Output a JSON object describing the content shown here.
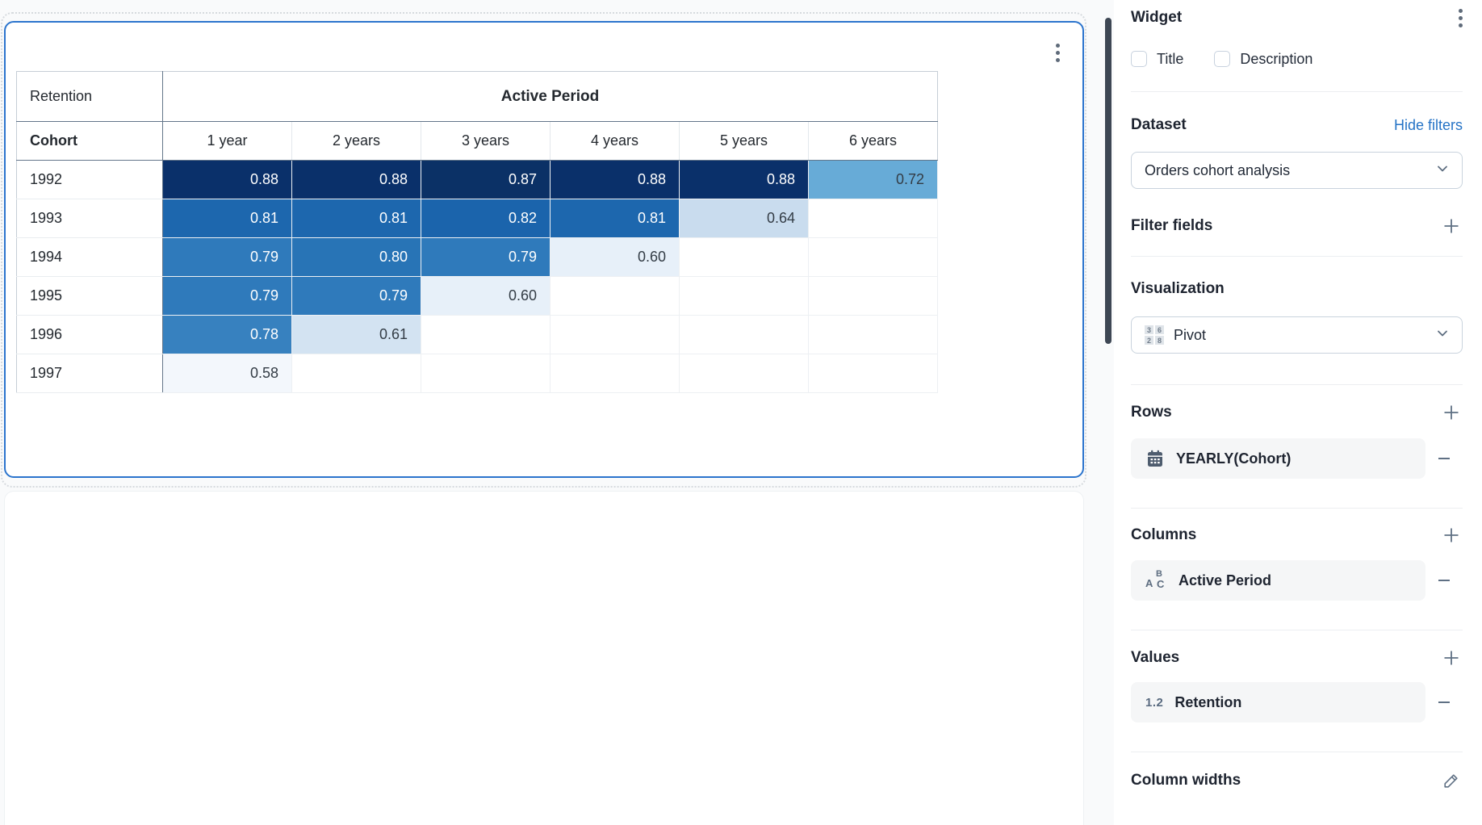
{
  "canvas": {
    "table": {
      "corner_label": "Retention",
      "group_label": "Active Period",
      "row_dim_label": "Cohort",
      "period_columns": [
        "1 year",
        "2 years",
        "3 years",
        "4 years",
        "5 years",
        "6 years"
      ],
      "rows": [
        {
          "cohort": "1992",
          "cells": [
            {
              "v": "0.88",
              "bg": "#0a306a",
              "fg": "#ffffff"
            },
            {
              "v": "0.88",
              "bg": "#0a306a",
              "fg": "#ffffff"
            },
            {
              "v": "0.87",
              "bg": "#0b3166",
              "fg": "#ffffff"
            },
            {
              "v": "0.88",
              "bg": "#0a306a",
              "fg": "#ffffff"
            },
            {
              "v": "0.88",
              "bg": "#0a306a",
              "fg": "#ffffff"
            },
            {
              "v": "0.72",
              "bg": "#67abd7",
              "fg": "#333c45"
            }
          ]
        },
        {
          "cohort": "1993",
          "cells": [
            {
              "v": "0.81",
              "bg": "#1d67ae",
              "fg": "#ffffff"
            },
            {
              "v": "0.81",
              "bg": "#1d67ae",
              "fg": "#ffffff"
            },
            {
              "v": "0.82",
              "bg": "#1b64ac",
              "fg": "#ffffff"
            },
            {
              "v": "0.81",
              "bg": "#1d67ae",
              "fg": "#ffffff"
            },
            {
              "v": "0.64",
              "bg": "#c9dcee",
              "fg": "#333c45"
            },
            null
          ]
        },
        {
          "cohort": "1994",
          "cells": [
            {
              "v": "0.79",
              "bg": "#2f7abb",
              "fg": "#ffffff"
            },
            {
              "v": "0.80",
              "bg": "#2874b6",
              "fg": "#ffffff"
            },
            {
              "v": "0.79",
              "bg": "#2f7abb",
              "fg": "#ffffff"
            },
            {
              "v": "0.60",
              "bg": "#e7f0f9",
              "fg": "#333c45"
            },
            null,
            null
          ]
        },
        {
          "cohort": "1995",
          "cells": [
            {
              "v": "0.79",
              "bg": "#2f7abb",
              "fg": "#ffffff"
            },
            {
              "v": "0.79",
              "bg": "#2f7abb",
              "fg": "#ffffff"
            },
            {
              "v": "0.60",
              "bg": "#e7f0f9",
              "fg": "#333c45"
            },
            null,
            null,
            null
          ]
        },
        {
          "cohort": "1996",
          "cells": [
            {
              "v": "0.78",
              "bg": "#3781bf",
              "fg": "#ffffff"
            },
            {
              "v": "0.61",
              "bg": "#d3e3f2",
              "fg": "#333c45"
            },
            null,
            null,
            null,
            null
          ]
        },
        {
          "cohort": "1997",
          "cells": [
            {
              "v": "0.58",
              "bg": "#f3f7fc",
              "fg": "#333c45"
            },
            null,
            null,
            null,
            null,
            null
          ]
        }
      ]
    }
  },
  "sidebar": {
    "title": "Widget",
    "checkboxes": [
      {
        "label": "Title",
        "checked": false
      },
      {
        "label": "Description",
        "checked": false
      }
    ],
    "dataset": {
      "heading": "Dataset",
      "link_label": "Hide filters",
      "selected": "Orders cohort analysis"
    },
    "filter_fields": {
      "heading": "Filter fields"
    },
    "visualization": {
      "heading": "Visualization",
      "selected": "Pivot",
      "icon": "pivot-grid-icon",
      "icon_numbers": [
        "3",
        "6",
        "2",
        "8"
      ]
    },
    "rows_section": {
      "heading": "Rows",
      "items": [
        {
          "label": "YEARLY(Cohort)",
          "icon": "calendar"
        }
      ]
    },
    "columns_section": {
      "heading": "Columns",
      "items": [
        {
          "label": "Active Period",
          "icon": "string"
        }
      ]
    },
    "values_section": {
      "heading": "Values",
      "items": [
        {
          "label": "Retention",
          "icon": "number",
          "icon_text": "1.2"
        }
      ]
    },
    "column_widths": {
      "heading": "Column widths"
    }
  },
  "colors": {
    "accent_selection": "#2b74cd",
    "link": "#2573c6",
    "scrollbar": "#3e4754",
    "canvas_bg": "#f9fafb",
    "heatmap_scale": [
      "#f3f7fc",
      "#e7f0f9",
      "#d3e3f2",
      "#c9dcee",
      "#67abd7",
      "#3781bf",
      "#2f7abb",
      "#1d67ae",
      "#0a306a"
    ]
  },
  "chart_data": {
    "type": "heatmap",
    "title": "Retention",
    "column_group": "Active Period",
    "rows": [
      "1992",
      "1993",
      "1994",
      "1995",
      "1996",
      "1997"
    ],
    "columns": [
      "1 year",
      "2 years",
      "3 years",
      "4 years",
      "5 years",
      "6 years"
    ],
    "values": [
      [
        0.88,
        0.88,
        0.87,
        0.88,
        0.88,
        0.72
      ],
      [
        0.81,
        0.81,
        0.82,
        0.81,
        0.64,
        null
      ],
      [
        0.79,
        0.8,
        0.79,
        0.6,
        null,
        null
      ],
      [
        0.79,
        0.79,
        0.6,
        null,
        null,
        null
      ],
      [
        0.78,
        0.61,
        null,
        null,
        null,
        null
      ],
      [
        0.58,
        null,
        null,
        null,
        null,
        null
      ]
    ]
  }
}
